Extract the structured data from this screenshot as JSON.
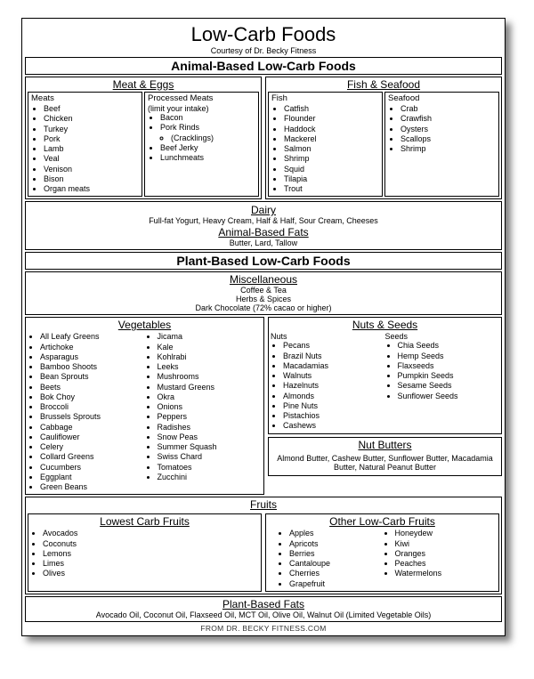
{
  "title": "Low-Carb Foods",
  "courtesy": "Courtesy of Dr. Becky Fitness",
  "animal_header": "Animal-Based Low-Carb Foods",
  "meat_eggs": {
    "title": "Meat & Eggs",
    "meats_title": "Meats",
    "meats": [
      "Beef",
      "Chicken",
      "Turkey",
      "Pork",
      "Lamb",
      "Veal",
      "Venison",
      "Bison",
      "Organ meats"
    ],
    "processed_title": "Processed Meats",
    "processed_note": "(limit your intake)",
    "processed": [
      "Bacon",
      "Pork Rinds"
    ],
    "processed_sub": "(Cracklings)",
    "processed2": [
      "Beef Jerky",
      "Lunchmeats"
    ]
  },
  "fish_seafood": {
    "title": "Fish & Seafood",
    "fish_title": "Fish",
    "fish": [
      "Catfish",
      "Flounder",
      "Haddock",
      "Mackerel",
      "Salmon",
      "Shrimp",
      "Squid",
      "Tilapia",
      "Trout"
    ],
    "seafood_title": "Seafood",
    "seafood": [
      "Crab",
      "Crawfish",
      "Oysters",
      "Scallops",
      "Shrimp"
    ]
  },
  "dairy": {
    "title": "Dairy",
    "body": "Full-fat Yogurt, Heavy Cream, Half & Half, Sour Cream, Cheeses"
  },
  "animal_fats": {
    "title": "Animal-Based Fats",
    "body": "Butter, Lard, Tallow"
  },
  "plant_header": "Plant-Based Low-Carb Foods",
  "misc": {
    "title": "Miscellaneous",
    "l1": "Coffee & Tea",
    "l2": "Herbs & Spices",
    "l3": "Dark Chocolate (72% cacao or higher)"
  },
  "vegetables": {
    "title": "Vegetables",
    "col1": [
      "All Leafy Greens",
      "Artichoke",
      "Asparagus",
      "Bamboo Shoots",
      "Bean Sprouts",
      "Beets",
      "Bok Choy",
      "Broccoli",
      "Brussels Sprouts",
      "Cabbage",
      "Cauliflower",
      "Celery",
      "Collard Greens",
      "Cucumbers",
      "Eggplant",
      "Green Beans"
    ],
    "col2": [
      "Jicama",
      "Kale",
      "Kohlrabi",
      "Leeks",
      "Mushrooms",
      "Mustard Greens",
      "Okra",
      "Onions",
      "Peppers",
      "Radishes",
      "Snow Peas",
      "Summer Squash",
      "Swiss Chard",
      "Tomatoes",
      "Zucchini"
    ]
  },
  "nuts_seeds": {
    "title": "Nuts & Seeds",
    "nuts_title": "Nuts",
    "nuts": [
      "Pecans",
      "Brazil Nuts",
      "Macadamias",
      "Walnuts",
      "Hazelnuts",
      "Almonds",
      "Pine Nuts",
      "Pistachios",
      "Cashews"
    ],
    "seeds_title": "Seeds",
    "seeds": [
      "Chia Seeds",
      "Hemp Seeds",
      "Flaxseeds",
      "Pumpkin Seeds",
      "Sesame Seeds",
      "Sunflower Seeds"
    ]
  },
  "nut_butters": {
    "title": "Nut Butters",
    "body": "Almond Butter, Cashew Butter, Sunflower Butter, Macadamia Butter, Natural Peanut Butter"
  },
  "fruits_header": "Fruits",
  "fruits_low": {
    "title": "Lowest Carb Fruits",
    "items": [
      "Avocados",
      "Coconuts",
      "Lemons",
      "Limes",
      "Olives"
    ]
  },
  "fruits_other": {
    "title": "Other Low-Carb Fruits",
    "col1": [
      "Apples",
      "Apricots",
      "Berries",
      "Cantaloupe",
      "Cherries",
      "Grapefruit"
    ],
    "col2": [
      "Honeydew",
      "Kiwi",
      "Oranges",
      "Peaches",
      "Watermelons"
    ]
  },
  "plant_fats": {
    "title": "Plant-Based Fats",
    "body": "Avocado Oil, Coconut Oil, Flaxseed Oil, MCT Oil, Olive Oil, Walnut Oil (Limited Vegetable Oils)"
  },
  "source": "FROM DR. BECKY FITNESS.COM"
}
